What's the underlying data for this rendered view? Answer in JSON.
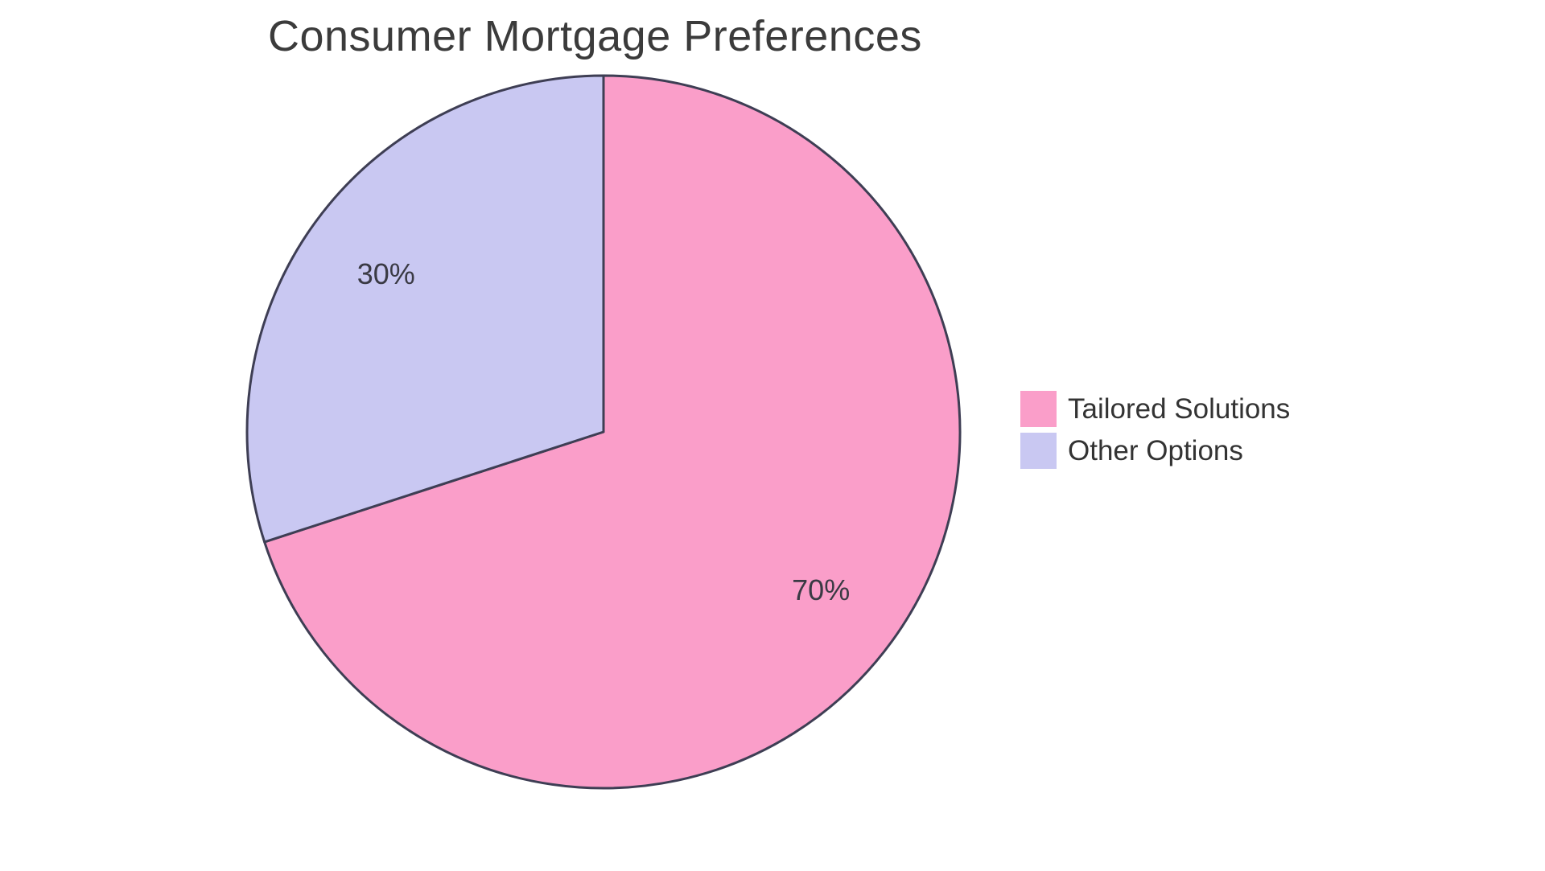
{
  "chart_data": {
    "type": "pie",
    "title": "Consumer Mortgage Preferences",
    "slices": [
      {
        "label": "Tailored Solutions",
        "value": 70,
        "display": "70%",
        "color": "#FA9EC9"
      },
      {
        "label": "Other Options",
        "value": 30,
        "display": "30%",
        "color": "#C9C8F2"
      }
    ],
    "start_angle_deg": 0,
    "direction": "clockwise",
    "legend_position": "right",
    "background": "#ffffff",
    "stroke_color": "#3E3E54",
    "stroke_width": 3,
    "slice_label_color": "#3A3A44",
    "title_color": "#3B3B3B",
    "legend_text_color": "#333333"
  }
}
